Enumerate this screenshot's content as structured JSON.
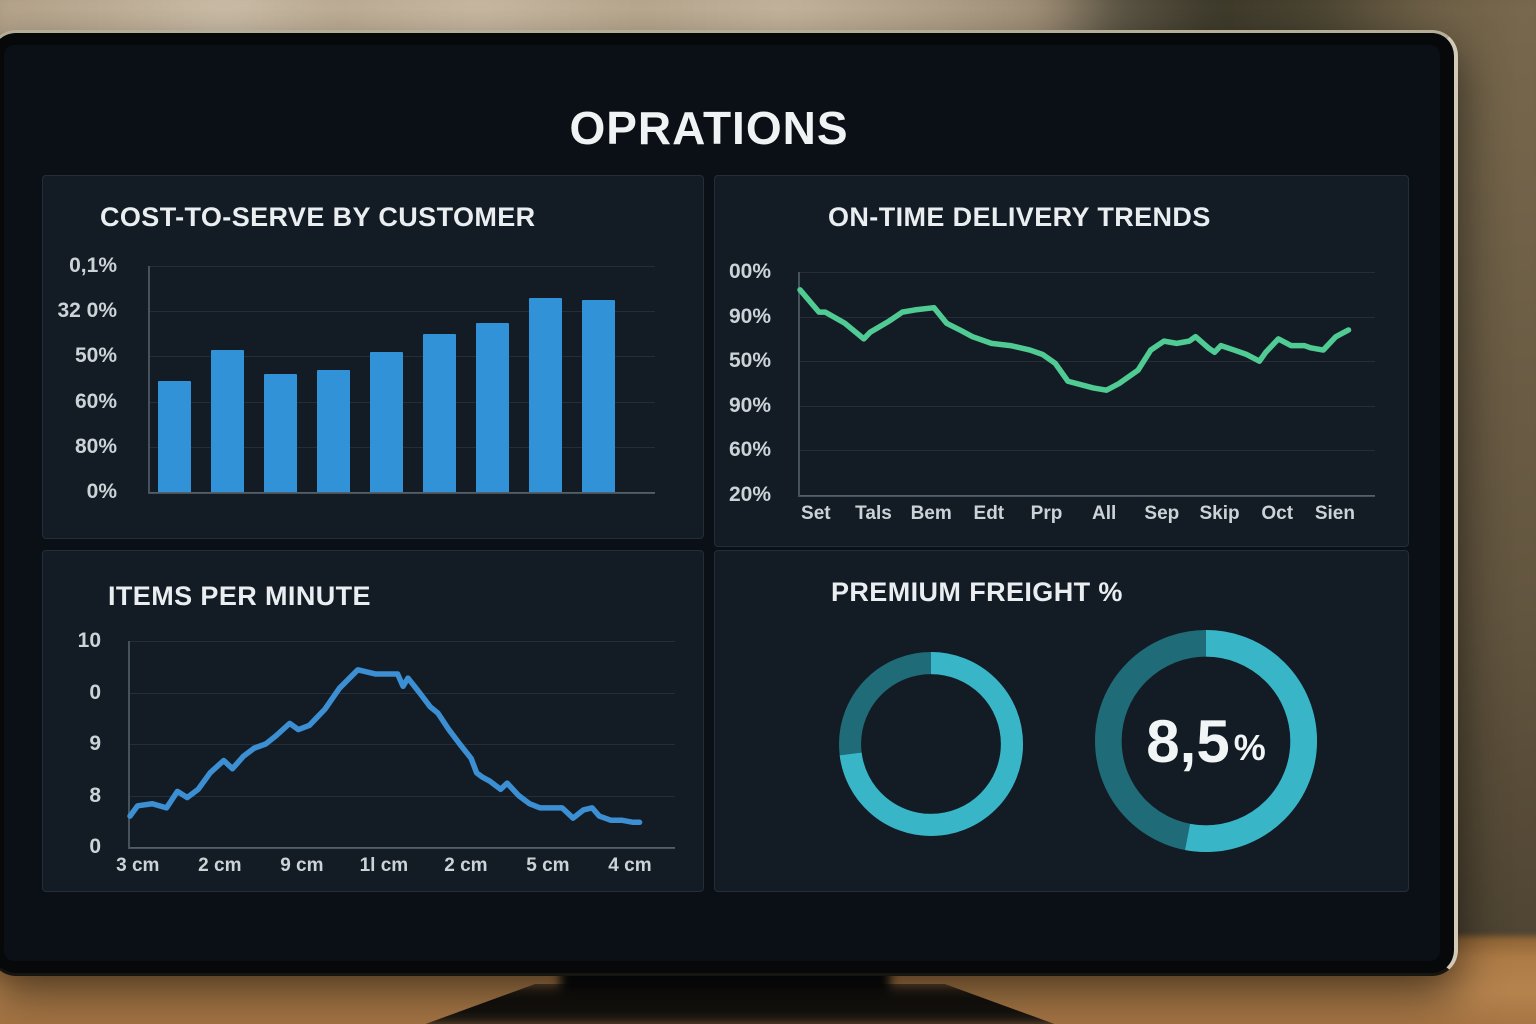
{
  "dashboard": {
    "title": "OPRATIONS"
  },
  "panels": {
    "cost_to_serve": {
      "title": "COST-TO-SERVE BY CUSTOMER"
    },
    "on_time_delivery": {
      "title": "ON-TIME DELIVERY TRENDS"
    },
    "items_per_minute": {
      "title": "ITEMS PER MINUTE"
    },
    "premium_freight": {
      "title": "PREMIUM FREIGHT %"
    }
  },
  "colors": {
    "bar_blue": "#3292d8",
    "line_green": "#50cb94",
    "line_blue": "#3b8fd2",
    "ring_teal": "#38b6c8",
    "ring_dark_teal": "#1f6b77",
    "panel_bg": "#131c25",
    "screen_bg": "#0a1016"
  },
  "chart_data": [
    {
      "type": "bar",
      "panel": "cost_to_serve",
      "title": "COST-TO-SERVE BY CUSTOMER",
      "y_tick_labels": [
        "0,1%",
        "32 0%",
        "50%",
        "60%",
        "80%",
        "0%"
      ],
      "values": [
        49,
        63,
        52,
        54,
        62,
        70,
        75,
        86,
        85
      ],
      "ylim": [
        0,
        100
      ],
      "bar_color": "#3292d8",
      "grid": true,
      "legend": "none"
    },
    {
      "type": "line",
      "panel": "on_time_delivery",
      "title": "ON-TIME DELIVERY TRENDS",
      "y_tick_labels": [
        "00%",
        "90%",
        "50%",
        "90%",
        "60%",
        "20%"
      ],
      "x_tick_labels": [
        "Set",
        "Tals",
        "Bem",
        "Edt",
        "Prp",
        "All",
        "Sep",
        "Skip",
        "Oct",
        "Sien"
      ],
      "line_color": "#50cb94",
      "grid": true,
      "points": [
        [
          0,
          8
        ],
        [
          3.3,
          18
        ],
        [
          4.4,
          18
        ],
        [
          7.8,
          23
        ],
        [
          11.1,
          30
        ],
        [
          12.2,
          27
        ],
        [
          15.5,
          22
        ],
        [
          17.8,
          18
        ],
        [
          20,
          17
        ],
        [
          23.3,
          16
        ],
        [
          25.5,
          23
        ],
        [
          27.8,
          26
        ],
        [
          30,
          29
        ],
        [
          33.3,
          32
        ],
        [
          36.6,
          33
        ],
        [
          40,
          35
        ],
        [
          42.2,
          37
        ],
        [
          44.4,
          41
        ],
        [
          46.6,
          49
        ],
        [
          51,
          52
        ],
        [
          53.3,
          53
        ],
        [
          55.5,
          50
        ],
        [
          58.8,
          44
        ],
        [
          61,
          35
        ],
        [
          63.3,
          31
        ],
        [
          65.5,
          32
        ],
        [
          67.7,
          31
        ],
        [
          68.8,
          29
        ],
        [
          71,
          34
        ],
        [
          72.1,
          36
        ],
        [
          73.2,
          33
        ],
        [
          75.5,
          35
        ],
        [
          77.7,
          37
        ],
        [
          79.9,
          40
        ],
        [
          81,
          36
        ],
        [
          83.2,
          30
        ],
        [
          85.4,
          33
        ],
        [
          87.7,
          33
        ],
        [
          88.8,
          34
        ],
        [
          91,
          35
        ],
        [
          93.2,
          29
        ],
        [
          95.4,
          26
        ]
      ]
    },
    {
      "type": "line",
      "panel": "items_per_minute",
      "title": "ITEMS PER MINUTE",
      "y_tick_labels": [
        "10",
        "0",
        "9",
        "8",
        "0"
      ],
      "x_tick_labels": [
        "3 cm",
        "2 cm",
        "9 cm",
        "1l cm",
        "2 cm",
        "5 cm",
        "4 cm"
      ],
      "line_color": "#3b8fd2",
      "grid": true,
      "points": [
        [
          0,
          85
        ],
        [
          1.4,
          80
        ],
        [
          4.1,
          79
        ],
        [
          6.7,
          81
        ],
        [
          8.7,
          73
        ],
        [
          10.5,
          76
        ],
        [
          12.5,
          72
        ],
        [
          14.7,
          64
        ],
        [
          17.2,
          58
        ],
        [
          18.8,
          62
        ],
        [
          20.8,
          56
        ],
        [
          22.8,
          52
        ],
        [
          24.9,
          50
        ],
        [
          26.8,
          46
        ],
        [
          29.3,
          40
        ],
        [
          30.9,
          43
        ],
        [
          32.9,
          41
        ],
        [
          35.8,
          33
        ],
        [
          38.4,
          23
        ],
        [
          41.8,
          14
        ],
        [
          45,
          16
        ],
        [
          47.9,
          16
        ],
        [
          49.1,
          16
        ],
        [
          50.1,
          22
        ],
        [
          51,
          18
        ],
        [
          53.1,
          25
        ],
        [
          55.1,
          32
        ],
        [
          56.5,
          35
        ],
        [
          58.5,
          43
        ],
        [
          60.5,
          50
        ],
        [
          62.6,
          57
        ],
        [
          63.6,
          64
        ],
        [
          64.6,
          66
        ],
        [
          66,
          68
        ],
        [
          68,
          72
        ],
        [
          69.2,
          69
        ],
        [
          71.3,
          75
        ],
        [
          73.3,
          79
        ],
        [
          75.2,
          81
        ],
        [
          77.3,
          81
        ],
        [
          79.3,
          81
        ],
        [
          81.3,
          86
        ],
        [
          83.2,
          82
        ],
        [
          84.8,
          81
        ],
        [
          86.1,
          85
        ],
        [
          88.2,
          87
        ],
        [
          90.2,
          87
        ],
        [
          92.3,
          88
        ],
        [
          93.5,
          88
        ]
      ]
    },
    {
      "type": "donut",
      "panel": "premium_freight",
      "title": "PREMIUM FREIGHT %",
      "ring_color": "#38b6c8",
      "track_color": "#1f6b77",
      "donuts": [
        {
          "percent": 73,
          "label": "",
          "unit": ""
        },
        {
          "percent": 53,
          "label": "8,5",
          "unit": "%"
        }
      ]
    }
  ]
}
